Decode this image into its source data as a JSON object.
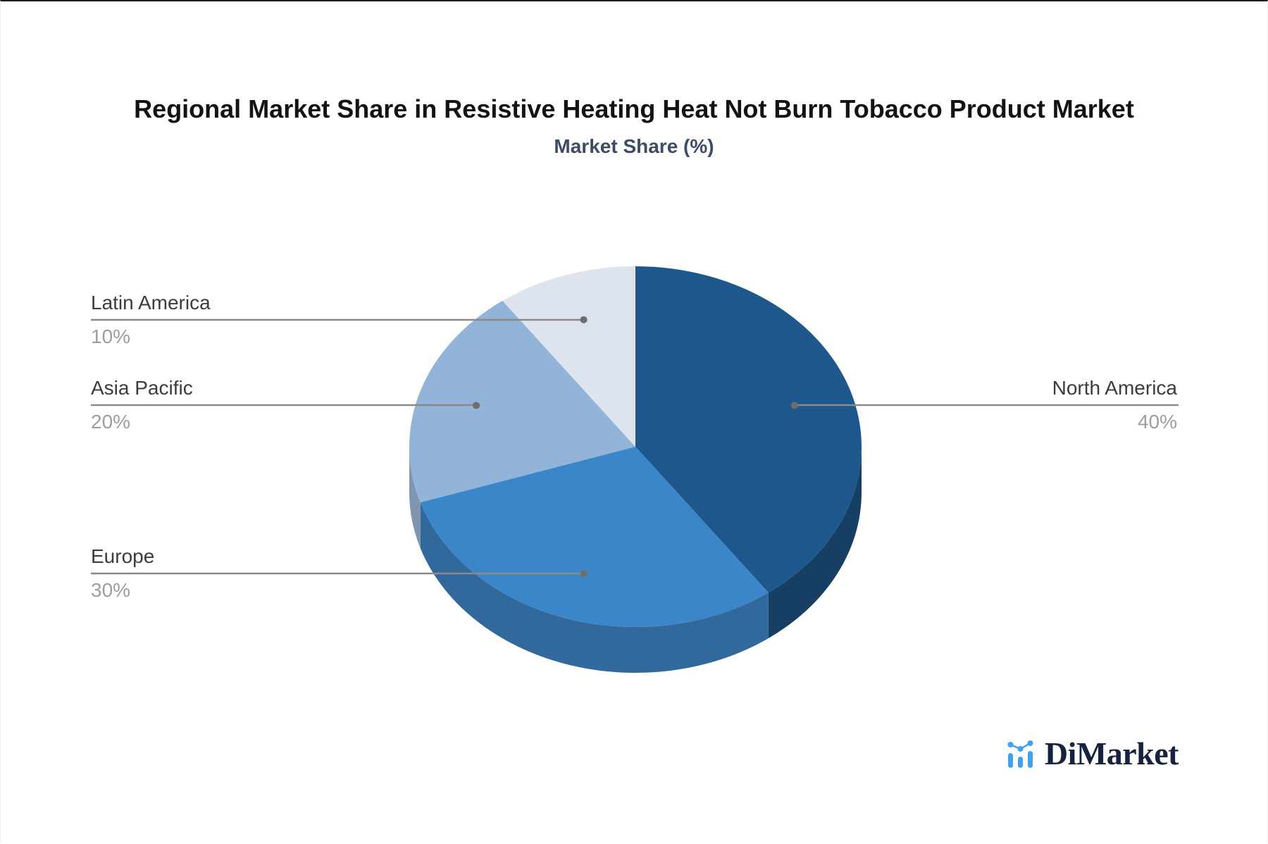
{
  "page": {
    "background": "#ffffff"
  },
  "chart_data": {
    "type": "pie",
    "style": "3d-pie-with-callouts",
    "title": "Regional Market Share in Resistive Heating Heat Not Burn Tobacco Product Market",
    "subtitle": "Market Share (%)",
    "unit": "%",
    "start_angle": "12-oclock",
    "direction": "clockwise",
    "legend_position": "callout-labels",
    "series": [
      {
        "label": "North America",
        "value": 40,
        "pct_label": "40%",
        "color": "#1d578c",
        "side_color": "#173f63",
        "callout_side": "right"
      },
      {
        "label": "Europe",
        "value": 30,
        "pct_label": "30%",
        "color": "#3b86c9",
        "side_color": "#31699c",
        "callout_side": "left"
      },
      {
        "label": "Asia Pacific",
        "value": 20,
        "pct_label": "20%",
        "color": "#92b4d8",
        "side_color": "#7e96b0",
        "callout_side": "left"
      },
      {
        "label": "Latin America",
        "value": 10,
        "pct_label": "10%",
        "color": "#dde4ee",
        "side_color": "#c3cfdf",
        "callout_side": "left"
      }
    ],
    "callout_style": {
      "line_color": "#8a8a8a",
      "dot_color": "#6d6d6d",
      "label_color": "#3c3c3c",
      "pct_color": "#9c9ea0"
    }
  },
  "branding": {
    "logo_text": "DiMarket",
    "text_color": "#16233e",
    "icon_color": "#42a0f2",
    "icon": "bar-chart-with-trend-dots"
  }
}
